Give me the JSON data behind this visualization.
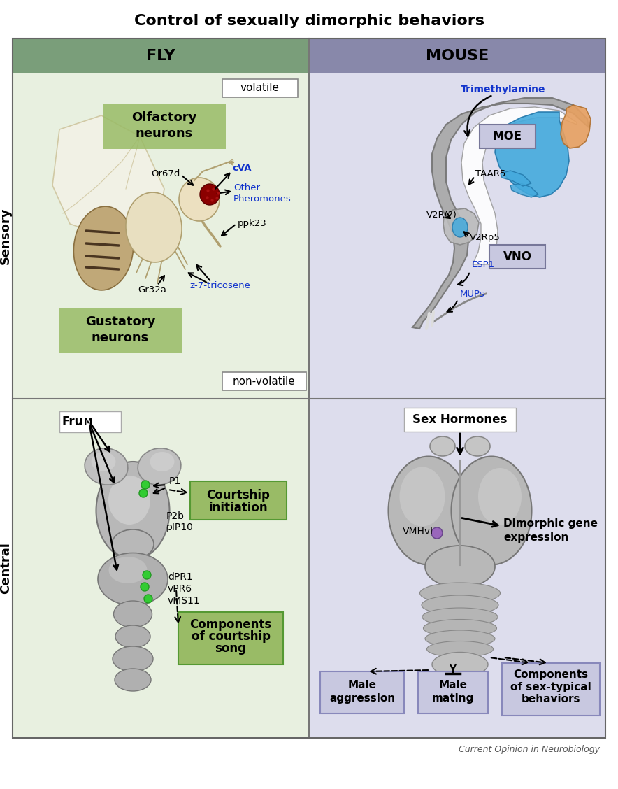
{
  "title": "Control of sexually dimorphic behaviors",
  "title_fontsize": 16,
  "bg_color": "#ffffff",
  "fly_header_color": "#7a9e7a",
  "mouse_header_color": "#8888aa",
  "fly_bg_color": "#e8f0e0",
  "mouse_bg_color": "#dddded",
  "green_box_bg": "#99bb66",
  "blue_text_color": "#1133cc",
  "sensory_label": "Sensory",
  "central_label": "Central",
  "fly_label": "FLY",
  "mouse_label": "MOUSE",
  "journal_text": "Current Opinion in Neurobiology",
  "volatile_text": "volatile",
  "nonvolatile_text": "non-volatile"
}
